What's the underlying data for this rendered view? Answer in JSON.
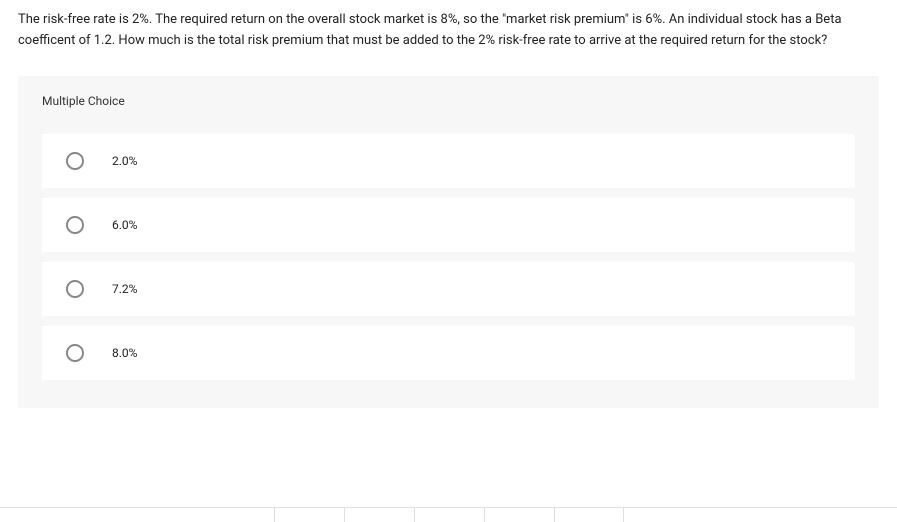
{
  "question": {
    "text": "The risk-free rate is 2%.  The required return on the overall stock market is 8%, so the \"market risk premium\" is 6%.  An individual stock has a Beta coefficent of 1.2.  How much is the total risk premium that must be added to the 2% risk-free rate to arrive at the required return for the stock?"
  },
  "section_label": "Multiple Choice",
  "options": [
    {
      "label": "2.0%"
    },
    {
      "label": "6.0%"
    },
    {
      "label": "7.2%"
    },
    {
      "label": "8.0%"
    }
  ],
  "colors": {
    "background": "#ffffff",
    "panel_bg": "#f7f7f7",
    "option_bg": "#ffffff",
    "text": "#222222",
    "radio_border": "#888888",
    "divider": "#e0e0e0"
  }
}
